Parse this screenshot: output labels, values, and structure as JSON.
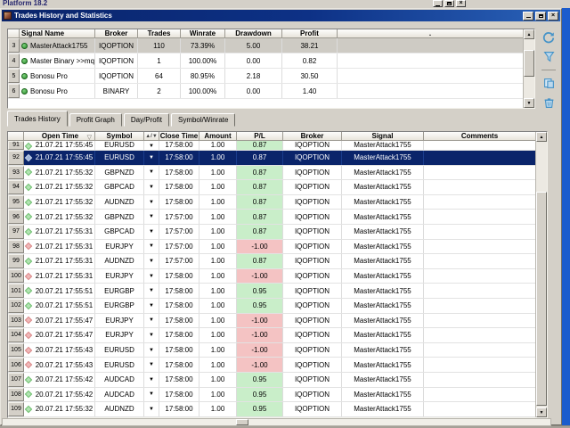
{
  "window": {
    "outer_title": "Platform 18.2",
    "inner_title": "Trades History and Statistics"
  },
  "colors": {
    "titlebar_navy": "#0a246a",
    "selection_navy": "#0a246a",
    "mdi_blue": "#1b5ccd",
    "client_gray": "#d4d0c8",
    "win_cell_green": "#c9eec9",
    "loss_cell_red": "#f4c3c3",
    "tool_icon_blue": "#4593c8"
  },
  "stats_table": {
    "headers": {
      "signal_name": "Signal Name",
      "broker": "Broker",
      "trades": "Trades",
      "winrate": "Winrate",
      "drawdown": "Drawdown",
      "profit": "Profit",
      "extra": "."
    },
    "rows": [
      {
        "num": "3",
        "name": "MasterAttack1755",
        "broker": "IQOPTION",
        "trades": "110",
        "winrate": "73.39%",
        "drawdown": "5.00",
        "profit": "38.21",
        "selected": true
      },
      {
        "num": "4",
        "name": "Master Binary >>mql5.com",
        "broker": "IQOPTION",
        "trades": "1",
        "winrate": "100.00%",
        "drawdown": "0.00",
        "profit": "0.82",
        "selected": false
      },
      {
        "num": "5",
        "name": "Bonosu Pro",
        "broker": "IQOPTION",
        "trades": "64",
        "winrate": "80.95%",
        "drawdown": "2.18",
        "profit": "30.50",
        "selected": false
      },
      {
        "num": "6",
        "name": "Bonosu Pro",
        "broker": "BINARY",
        "trades": "2",
        "winrate": "100.00%",
        "drawdown": "0.00",
        "profit": "1.40",
        "selected": false
      }
    ]
  },
  "toolbar": {
    "icons": [
      "refresh-icon",
      "filter-icon",
      "copy-icon",
      "delete-icon"
    ]
  },
  "tabs": [
    {
      "label": "Trades History",
      "active": true
    },
    {
      "label": "Profit Graph",
      "active": false
    },
    {
      "label": "Day/Profit",
      "active": false
    },
    {
      "label": "Symbol/Winrate",
      "active": false
    }
  ],
  "trades_table": {
    "headers": {
      "open_time": "Open Time",
      "symbol": "Symbol",
      "direction": "▲/▼",
      "close_time": "Close Time",
      "amount": "Amount",
      "pl": "P/L",
      "broker": "Broker",
      "signal": "Signal",
      "comments": "Comments"
    },
    "sort_glyph": "▽",
    "rows": [
      {
        "num": "91",
        "open": "21.07.21 17:55:45",
        "sym": "EURUSD",
        "dir": "▼",
        "close": "17:58:00",
        "amt": "1.00",
        "pl": "0.87",
        "res": "win",
        "broker": "IQOPTION",
        "signal": "MasterAttack1755",
        "comment": "",
        "clipped": true,
        "selected": false
      },
      {
        "num": "92",
        "open": "21.07.21 17:55:45",
        "sym": "EURUSD",
        "dir": "▼",
        "close": "17:58:00",
        "amt": "1.00",
        "pl": "0.87",
        "res": "win",
        "broker": "IQOPTION",
        "signal": "MasterAttack1755",
        "comment": "",
        "clipped": false,
        "selected": true
      },
      {
        "num": "93",
        "open": "21.07.21 17:55:32",
        "sym": "GBPNZD",
        "dir": "▼",
        "close": "17:58:00",
        "amt": "1.00",
        "pl": "0.87",
        "res": "win",
        "broker": "IQOPTION",
        "signal": "MasterAttack1755",
        "comment": "",
        "clipped": false,
        "selected": false
      },
      {
        "num": "94",
        "open": "21.07.21 17:55:32",
        "sym": "GBPCAD",
        "dir": "▼",
        "close": "17:58:00",
        "amt": "1.00",
        "pl": "0.87",
        "res": "win",
        "broker": "IQOPTION",
        "signal": "MasterAttack1755",
        "comment": "",
        "clipped": false,
        "selected": false
      },
      {
        "num": "95",
        "open": "21.07.21 17:55:32",
        "sym": "AUDNZD",
        "dir": "▼",
        "close": "17:58:00",
        "amt": "1.00",
        "pl": "0.87",
        "res": "win",
        "broker": "IQOPTION",
        "signal": "MasterAttack1755",
        "comment": "",
        "clipped": false,
        "selected": false
      },
      {
        "num": "96",
        "open": "21.07.21 17:55:32",
        "sym": "GBPNZD",
        "dir": "▼",
        "close": "17:57:00",
        "amt": "1.00",
        "pl": "0.87",
        "res": "win",
        "broker": "IQOPTION",
        "signal": "MasterAttack1755",
        "comment": "",
        "clipped": false,
        "selected": false
      },
      {
        "num": "97",
        "open": "21.07.21 17:55:31",
        "sym": "GBPCAD",
        "dir": "▼",
        "close": "17:57:00",
        "amt": "1.00",
        "pl": "0.87",
        "res": "win",
        "broker": "IQOPTION",
        "signal": "MasterAttack1755",
        "comment": "",
        "clipped": false,
        "selected": false
      },
      {
        "num": "98",
        "open": "21.07.21 17:55:31",
        "sym": "EURJPY",
        "dir": "▼",
        "close": "17:57:00",
        "amt": "1.00",
        "pl": "-1.00",
        "res": "loss",
        "broker": "IQOPTION",
        "signal": "MasterAttack1755",
        "comment": "",
        "clipped": false,
        "selected": false
      },
      {
        "num": "99",
        "open": "21.07.21 17:55:31",
        "sym": "AUDNZD",
        "dir": "▼",
        "close": "17:57:00",
        "amt": "1.00",
        "pl": "0.87",
        "res": "win",
        "broker": "IQOPTION",
        "signal": "MasterAttack1755",
        "comment": "",
        "clipped": false,
        "selected": false
      },
      {
        "num": "100",
        "open": "21.07.21 17:55:31",
        "sym": "EURJPY",
        "dir": "▼",
        "close": "17:58:00",
        "amt": "1.00",
        "pl": "-1.00",
        "res": "loss",
        "broker": "IQOPTION",
        "signal": "MasterAttack1755",
        "comment": "",
        "clipped": false,
        "selected": false
      },
      {
        "num": "101",
        "open": "20.07.21 17:55:51",
        "sym": "EURGBP",
        "dir": "▼",
        "close": "17:58:00",
        "amt": "1.00",
        "pl": "0.95",
        "res": "win",
        "broker": "IQOPTION",
        "signal": "MasterAttack1755",
        "comment": "",
        "clipped": false,
        "selected": false
      },
      {
        "num": "102",
        "open": "20.07.21 17:55:51",
        "sym": "EURGBP",
        "dir": "▼",
        "close": "17:58:00",
        "amt": "1.00",
        "pl": "0.95",
        "res": "win",
        "broker": "IQOPTION",
        "signal": "MasterAttack1755",
        "comment": "",
        "clipped": false,
        "selected": false
      },
      {
        "num": "103",
        "open": "20.07.21 17:55:47",
        "sym": "EURJPY",
        "dir": "▼",
        "close": "17:58:00",
        "amt": "1.00",
        "pl": "-1.00",
        "res": "loss",
        "broker": "IQOPTION",
        "signal": "MasterAttack1755",
        "comment": "",
        "clipped": false,
        "selected": false
      },
      {
        "num": "104",
        "open": "20.07.21 17:55:47",
        "sym": "EURJPY",
        "dir": "▼",
        "close": "17:58:00",
        "amt": "1.00",
        "pl": "-1.00",
        "res": "loss",
        "broker": "IQOPTION",
        "signal": "MasterAttack1755",
        "comment": "",
        "clipped": false,
        "selected": false
      },
      {
        "num": "105",
        "open": "20.07.21 17:55:43",
        "sym": "EURUSD",
        "dir": "▼",
        "close": "17:58:00",
        "amt": "1.00",
        "pl": "-1.00",
        "res": "loss",
        "broker": "IQOPTION",
        "signal": "MasterAttack1755",
        "comment": "",
        "clipped": false,
        "selected": false
      },
      {
        "num": "106",
        "open": "20.07.21 17:55:43",
        "sym": "EURUSD",
        "dir": "▼",
        "close": "17:58:00",
        "amt": "1.00",
        "pl": "-1.00",
        "res": "loss",
        "broker": "IQOPTION",
        "signal": "MasterAttack1755",
        "comment": "",
        "clipped": false,
        "selected": false
      },
      {
        "num": "107",
        "open": "20.07.21 17:55:42",
        "sym": "AUDCAD",
        "dir": "▼",
        "close": "17:58:00",
        "amt": "1.00",
        "pl": "0.95",
        "res": "win",
        "broker": "IQOPTION",
        "signal": "MasterAttack1755",
        "comment": "",
        "clipped": false,
        "selected": false
      },
      {
        "num": "108",
        "open": "20.07.21 17:55:42",
        "sym": "AUDCAD",
        "dir": "▼",
        "close": "17:58:00",
        "amt": "1.00",
        "pl": "0.95",
        "res": "win",
        "broker": "IQOPTION",
        "signal": "MasterAttack1755",
        "comment": "",
        "clipped": false,
        "selected": false
      },
      {
        "num": "109",
        "open": "20.07.21 17:55:32",
        "sym": "AUDNZD",
        "dir": "▼",
        "close": "17:58:00",
        "amt": "1.00",
        "pl": "0.95",
        "res": "win",
        "broker": "IQOPTION",
        "signal": "MasterAttack1755",
        "comment": "",
        "clipped": false,
        "selected": false
      },
      {
        "num": "110",
        "open": "20.07.21 17:55:32",
        "sym": "AUDNZD",
        "dir": "▼",
        "close": "17:58:00",
        "amt": "1.00",
        "pl": "0.95",
        "res": "win",
        "broker": "IQOPTION",
        "signal": "MasterAttack1755",
        "comment": "",
        "clipped": false,
        "selected": false
      }
    ]
  }
}
